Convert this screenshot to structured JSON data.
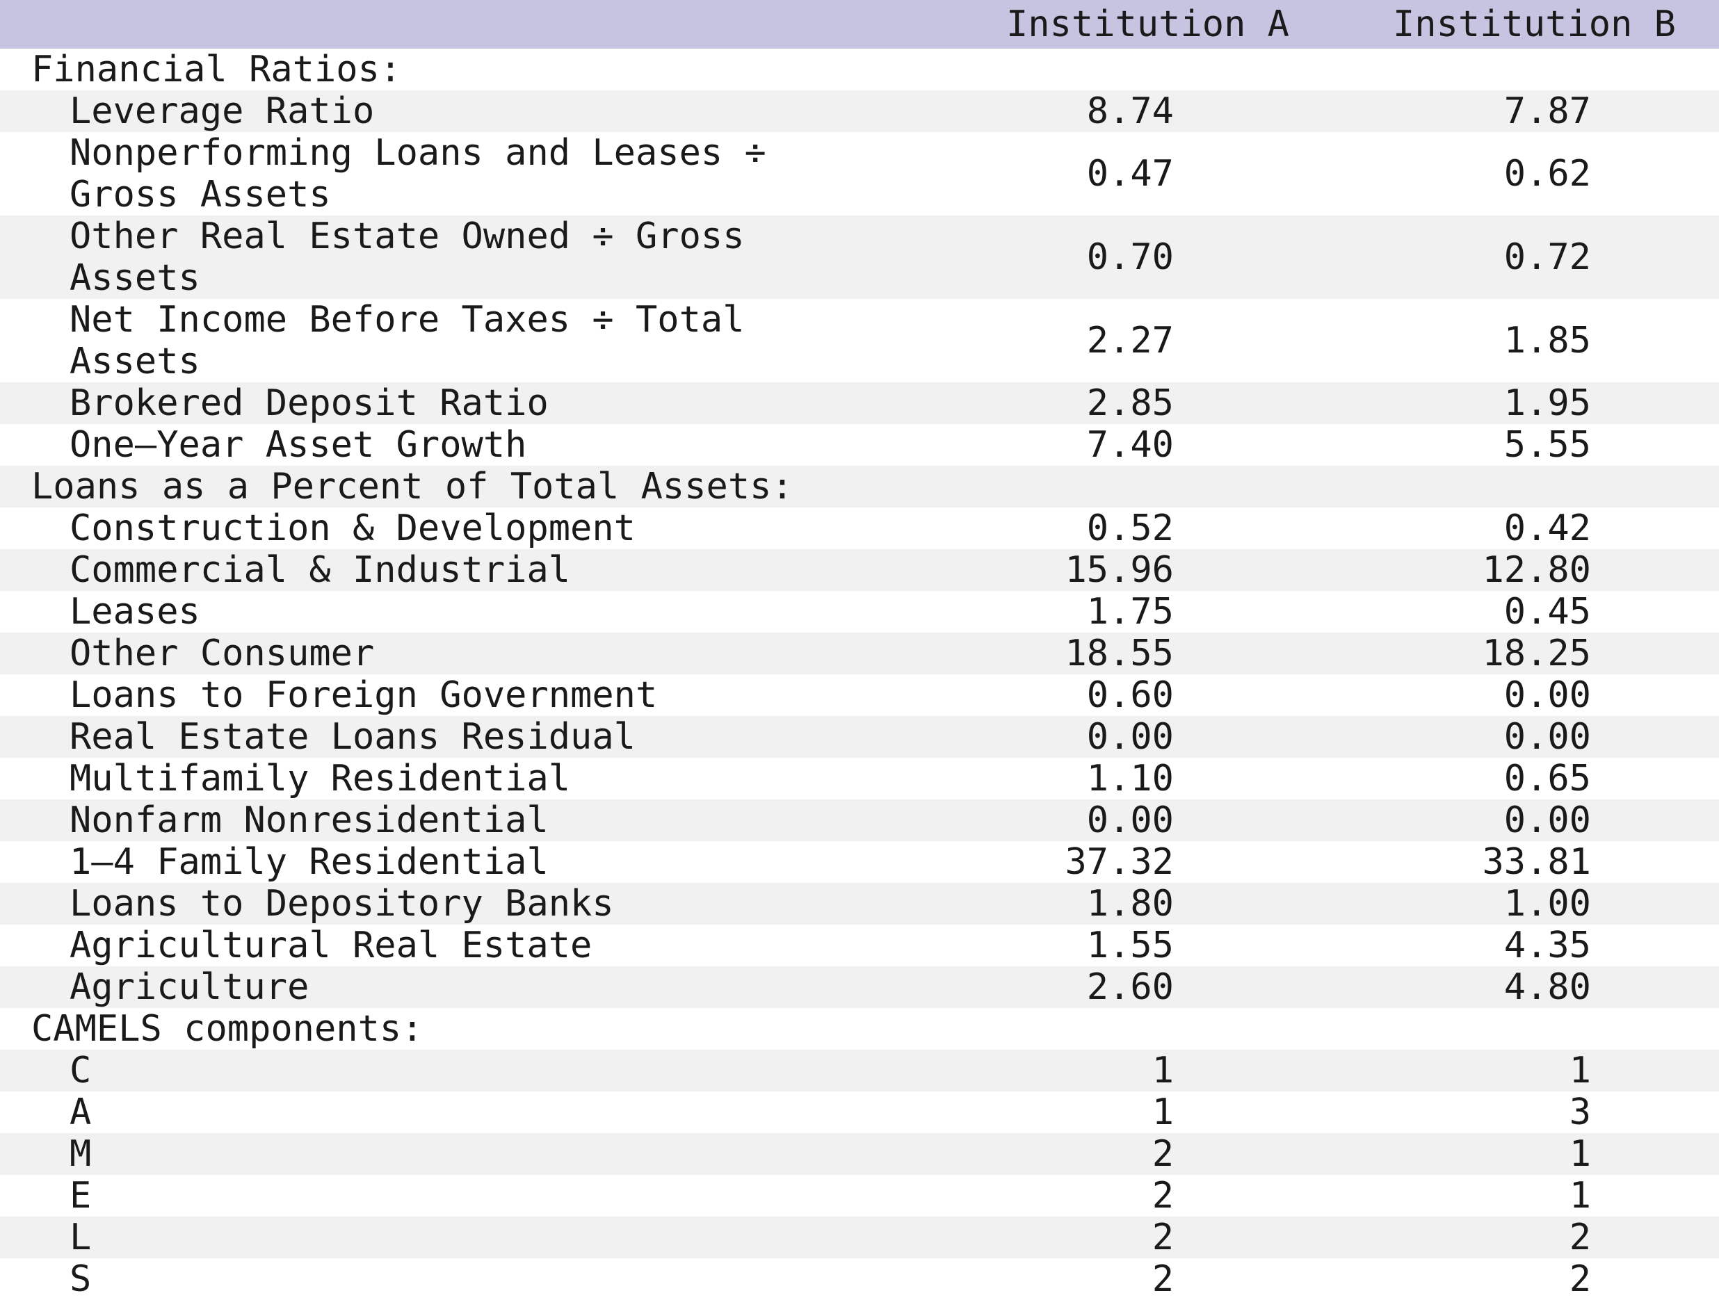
{
  "header": {
    "institution_a": "Institution A",
    "institution_b": "Institution B"
  },
  "rows": [
    {
      "kind": "section",
      "label": "Financial Ratios:",
      "a": "",
      "b": ""
    },
    {
      "kind": "item",
      "label": "Leverage Ratio",
      "a": "8.74",
      "b": "7.87"
    },
    {
      "kind": "item",
      "label": "Nonperforming Loans and Leases ÷\nGross Assets",
      "a": "0.47",
      "b": "0.62"
    },
    {
      "kind": "item",
      "label": "Other Real Estate Owned ÷ Gross\nAssets",
      "a": "0.70",
      "b": "0.72"
    },
    {
      "kind": "item",
      "label": "Net Income Before Taxes ÷ Total\nAssets",
      "a": "2.27",
      "b": "1.85"
    },
    {
      "kind": "item",
      "label": "Brokered Deposit Ratio",
      "a": "2.85",
      "b": "1.95"
    },
    {
      "kind": "item",
      "label": "One–Year Asset Growth",
      "a": "7.40",
      "b": "5.55"
    },
    {
      "kind": "section",
      "label": "Loans as a Percent of Total Assets:",
      "a": "",
      "b": ""
    },
    {
      "kind": "item",
      "label": "Construction & Development",
      "a": "0.52",
      "b": "0.42"
    },
    {
      "kind": "item",
      "label": "Commercial & Industrial",
      "a": "15.96",
      "b": "12.80"
    },
    {
      "kind": "item",
      "label": "Leases",
      "a": "1.75",
      "b": "0.45"
    },
    {
      "kind": "item",
      "label": "Other Consumer",
      "a": "18.55",
      "b": "18.25"
    },
    {
      "kind": "item",
      "label": "Loans to Foreign Government",
      "a": "0.60",
      "b": "0.00"
    },
    {
      "kind": "item",
      "label": "Real Estate Loans Residual",
      "a": "0.00",
      "b": "0.00"
    },
    {
      "kind": "item",
      "label": "Multifamily Residential",
      "a": "1.10",
      "b": "0.65"
    },
    {
      "kind": "item",
      "label": "Nonfarm Nonresidential",
      "a": "0.00",
      "b": "0.00"
    },
    {
      "kind": "item",
      "label": "1–4 Family Residential",
      "a": "37.32",
      "b": "33.81"
    },
    {
      "kind": "item",
      "label": "Loans to Depository Banks",
      "a": "1.80",
      "b": "1.00"
    },
    {
      "kind": "item",
      "label": "Agricultural Real Estate",
      "a": "1.55",
      "b": "4.35"
    },
    {
      "kind": "item",
      "label": "Agriculture",
      "a": "2.60",
      "b": "4.80"
    },
    {
      "kind": "section",
      "label": "CAMELS components:",
      "a": "",
      "b": ""
    },
    {
      "kind": "item",
      "label": "C",
      "a": "1",
      "b": "1"
    },
    {
      "kind": "item",
      "label": "A",
      "a": "1",
      "b": "3"
    },
    {
      "kind": "item",
      "label": "M",
      "a": "2",
      "b": "1"
    },
    {
      "kind": "item",
      "label": "E",
      "a": "2",
      "b": "1"
    },
    {
      "kind": "item",
      "label": "L",
      "a": "2",
      "b": "2"
    },
    {
      "kind": "item",
      "label": "S",
      "a": "2",
      "b": "2"
    }
  ],
  "colors": {
    "header_bg": "#c7c4e1",
    "row_alt_bg": "#f1f1f1",
    "text": "#1a1a1a"
  },
  "chart_data": {
    "type": "table",
    "title": "Institution A vs Institution B comparison",
    "columns": [
      "",
      "Institution A",
      "Institution B"
    ],
    "sections": [
      {
        "section": "Financial Ratios:",
        "rows": [
          [
            "Leverage Ratio",
            8.74,
            7.87
          ],
          [
            "Nonperforming Loans and Leases ÷ Gross Assets",
            0.47,
            0.62
          ],
          [
            "Other Real Estate Owned ÷ Gross Assets",
            0.7,
            0.72
          ],
          [
            "Net Income Before Taxes ÷ Total Assets",
            2.27,
            1.85
          ],
          [
            "Brokered Deposit Ratio",
            2.85,
            1.95
          ],
          [
            "One–Year Asset Growth",
            7.4,
            5.55
          ]
        ]
      },
      {
        "section": "Loans as a Percent of Total Assets:",
        "rows": [
          [
            "Construction & Development",
            0.52,
            0.42
          ],
          [
            "Commercial & Industrial",
            15.96,
            12.8
          ],
          [
            "Leases",
            1.75,
            0.45
          ],
          [
            "Other Consumer",
            18.55,
            18.25
          ],
          [
            "Loans to Foreign Government",
            0.6,
            0.0
          ],
          [
            "Real Estate Loans Residual",
            0.0,
            0.0
          ],
          [
            "Multifamily Residential",
            1.1,
            0.65
          ],
          [
            "Nonfarm Nonresidential",
            0.0,
            0.0
          ],
          [
            "1–4 Family Residential",
            37.32,
            33.81
          ],
          [
            "Loans to Depository Banks",
            1.8,
            1.0
          ],
          [
            "Agricultural Real Estate",
            1.55,
            4.35
          ],
          [
            "Agriculture",
            2.6,
            4.8
          ]
        ]
      },
      {
        "section": "CAMELS components:",
        "rows": [
          [
            "C",
            1,
            1
          ],
          [
            "A",
            1,
            3
          ],
          [
            "M",
            2,
            1
          ],
          [
            "E",
            2,
            1
          ],
          [
            "L",
            2,
            2
          ],
          [
            "S",
            2,
            2
          ]
        ]
      }
    ]
  }
}
